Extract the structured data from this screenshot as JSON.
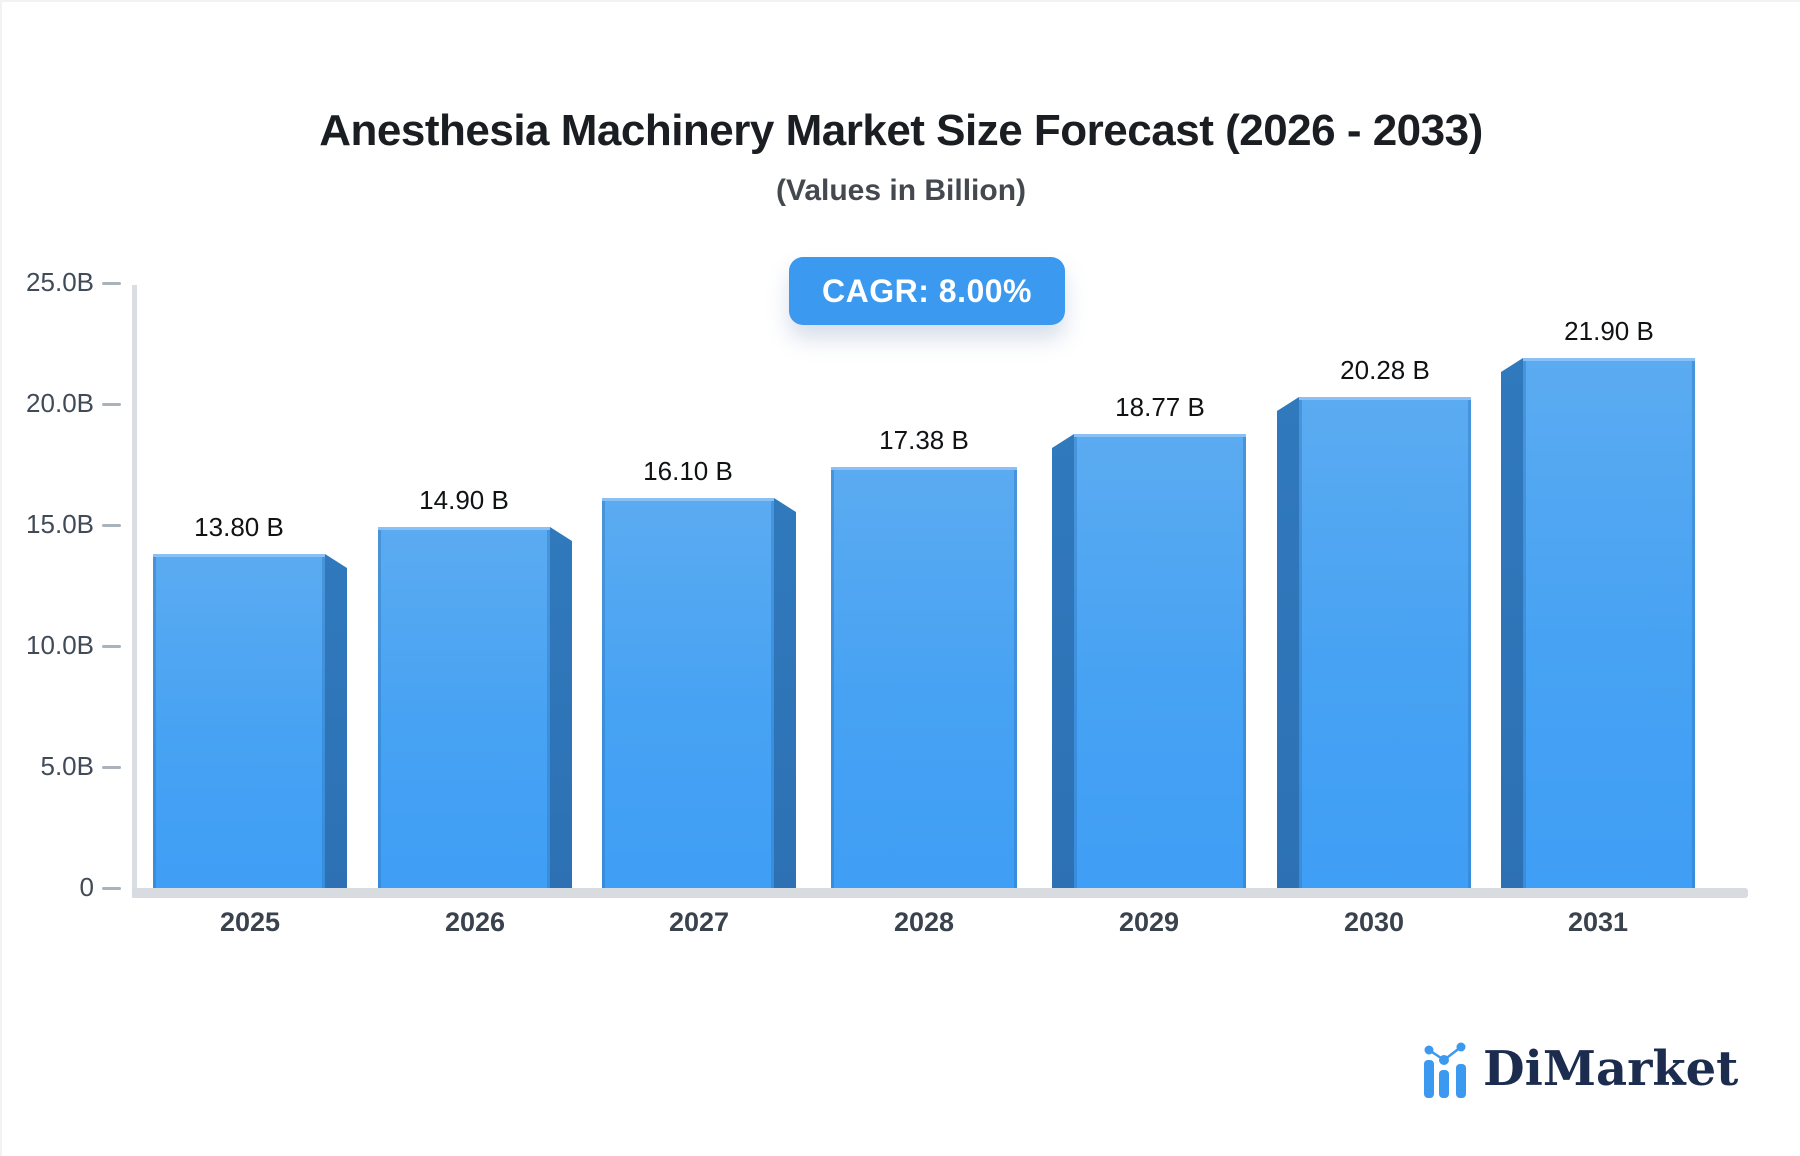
{
  "title": "Anesthesia Machinery Market Size Forecast (2026 - 2033)",
  "subtitle": "(Values in Billion)",
  "badge": {
    "label": "CAGR: 8.00%"
  },
  "brand": {
    "name": "DiMarket"
  },
  "y_axis": {
    "ticks": [
      {
        "label": "25.0B",
        "value": 25
      },
      {
        "label": "20.0B",
        "value": 20
      },
      {
        "label": "15.0B",
        "value": 15
      },
      {
        "label": "10.0B",
        "value": 10
      },
      {
        "label": "5.0B",
        "value": 5
      },
      {
        "label": "0",
        "value": 0
      }
    ]
  },
  "chart_data": {
    "type": "bar",
    "title": "Anesthesia Machinery Market Size Forecast (2026 - 2033)",
    "subtitle": "(Values in Billion)",
    "annotation": "CAGR: 8.00%",
    "unit": "Billion",
    "categories": [
      "2025",
      "2026",
      "2027",
      "2028",
      "2029",
      "2030",
      "2031"
    ],
    "values": [
      13.8,
      14.9,
      16.1,
      17.38,
      18.77,
      20.28,
      21.9
    ],
    "bar_labels": [
      "13.80 B",
      "14.90 B",
      "16.10 B",
      "17.38 B",
      "18.77 B",
      "20.28 B",
      "21.90 B"
    ],
    "ylim": [
      0,
      25
    ],
    "y_tick_labels": [
      "25.0B",
      "20.0B",
      "15.0B",
      "10.0B",
      "5.0B",
      "0"
    ],
    "grid": false,
    "legend": false,
    "style": "3d-perspective-bars",
    "bar_face_color": "#47a2f3",
    "bar_side_color": "#2e74b8",
    "accent_color": "#3b99ef"
  },
  "colors": {
    "accent_blue": "#3b99ef",
    "bar_face": "#47a2f3",
    "bar_side": "#2e74b8",
    "axis_gray": "#d8dce0",
    "title_text": "#1a1d21",
    "brand_navy": "#1c2c4e"
  }
}
